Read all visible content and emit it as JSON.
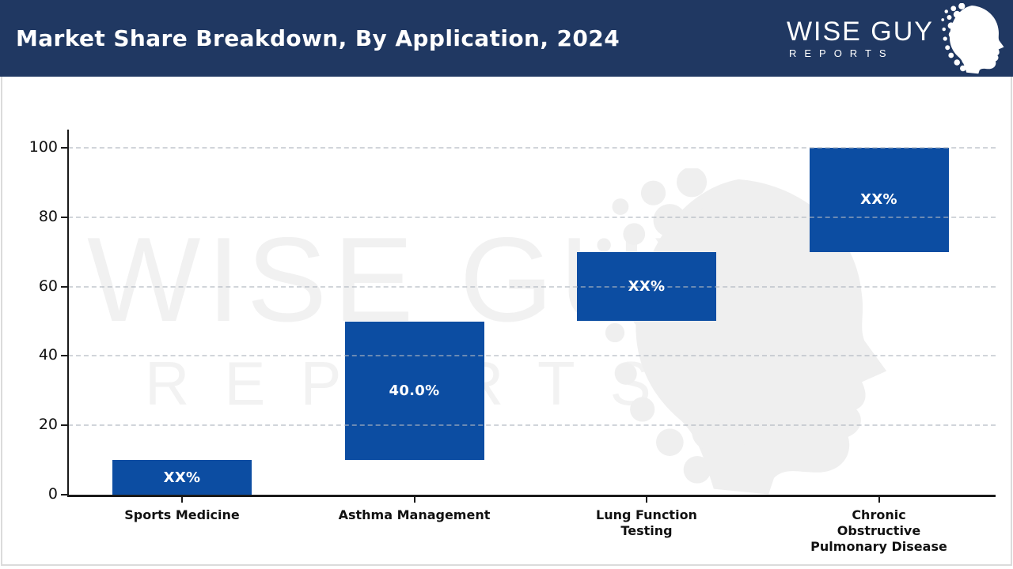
{
  "header": {
    "title": "Market Share Breakdown, By Application, 2024",
    "bg_color": "#203862",
    "logo": {
      "name": "WISE GUY",
      "sub": "REPORTS",
      "icon": "dotted-head-profile-icon"
    }
  },
  "watermark": {
    "line1": "WISE GUY",
    "line2": "REPORTS",
    "icon": "dotted-head-profile-icon"
  },
  "chart_data": {
    "type": "bar",
    "variant": "waterfall",
    "title": "Market Share Breakdown, By Application, 2024",
    "categories": [
      "Sports Medicine",
      "Asthma Management",
      "Lung Function Testing",
      "Chronic Obstructive Pulmonary Disease"
    ],
    "category_lines": [
      [
        "Sports Medicine"
      ],
      [
        "Asthma Management"
      ],
      [
        "Lung Function",
        "Testing"
      ],
      [
        "Chronic",
        "Obstructive",
        "Pulmonary Disease"
      ]
    ],
    "bars": [
      {
        "category": "Sports Medicine",
        "start": 0,
        "end": 10,
        "label": "XX%"
      },
      {
        "category": "Asthma Management",
        "start": 10,
        "end": 50,
        "label": "40.0%"
      },
      {
        "category": "Lung Function Testing",
        "start": 50,
        "end": 70,
        "label": "XX%"
      },
      {
        "category": "Chronic Obstructive Pulmonary Disease",
        "start": 70,
        "end": 100,
        "label": "XX%"
      }
    ],
    "xlabel": "",
    "ylabel": "",
    "ylim": [
      0,
      100
    ],
    "yticks": [
      0,
      20,
      40,
      60,
      80,
      100
    ],
    "grid": "horizontal-dashed-over-bars",
    "legend": "none",
    "colors": {
      "bar": "#0c4da2",
      "bar_label": "#ffffff",
      "axis": "#1a1a1a",
      "grid": "#c9cdd4",
      "tick_text": "#111111"
    }
  }
}
